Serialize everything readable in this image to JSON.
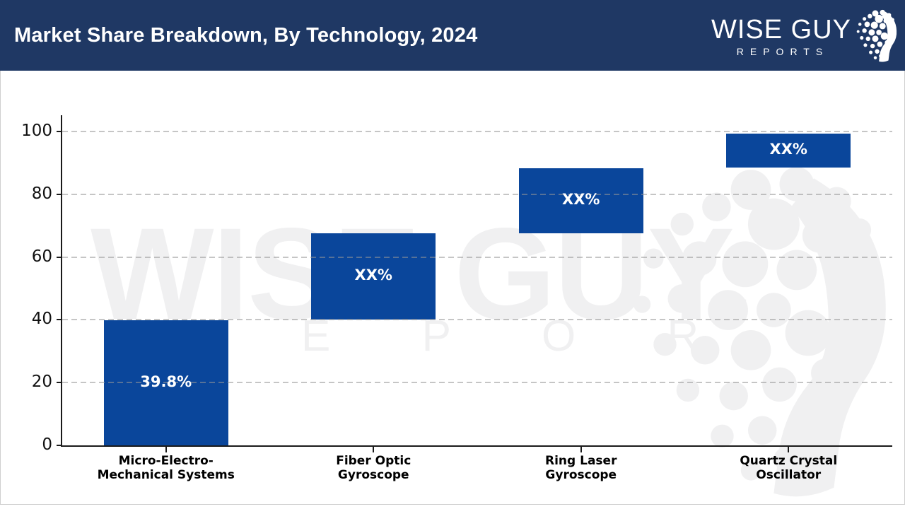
{
  "header": {
    "title": "Market Share Breakdown, By Technology, 2024",
    "bg_color": "#1F3864",
    "logo": {
      "line1": "WISE GUY",
      "line2": "REPORTS"
    }
  },
  "watermark": {
    "line1": "WISE GUY.",
    "line2": "R E P O R T S"
  },
  "chart_data": {
    "type": "bar",
    "subtype": "waterfall",
    "title": "Market Share Breakdown, By Technology, 2024",
    "categories": [
      [
        "Micro-Electro-",
        "Mechanical Systems"
      ],
      [
        "Fiber Optic",
        "Gyroscope"
      ],
      [
        "Ring Laser",
        "Gyroscope"
      ],
      [
        "Quartz Crystal",
        "Oscillator"
      ]
    ],
    "segments": [
      {
        "start": 0,
        "end": 39.8,
        "label": "39.8%"
      },
      {
        "start": 40,
        "end": 67.5,
        "label": "XX%"
      },
      {
        "start": 67.5,
        "end": 88.2,
        "label": "XX%"
      },
      {
        "start": 88.4,
        "end": 99.4,
        "label": "XX%"
      }
    ],
    "y_ticks": [
      0,
      20,
      40,
      60,
      80,
      100
    ],
    "ylim": [
      0,
      105
    ],
    "xlabel": "",
    "ylabel": "",
    "legend": "none",
    "grid": "horizontal-dashed",
    "bar_color": "#0A469B",
    "bar_label_color": "#FFFFFF",
    "gridline_color": "#BBBBBB",
    "watermark_color": "#F0F0F1"
  }
}
